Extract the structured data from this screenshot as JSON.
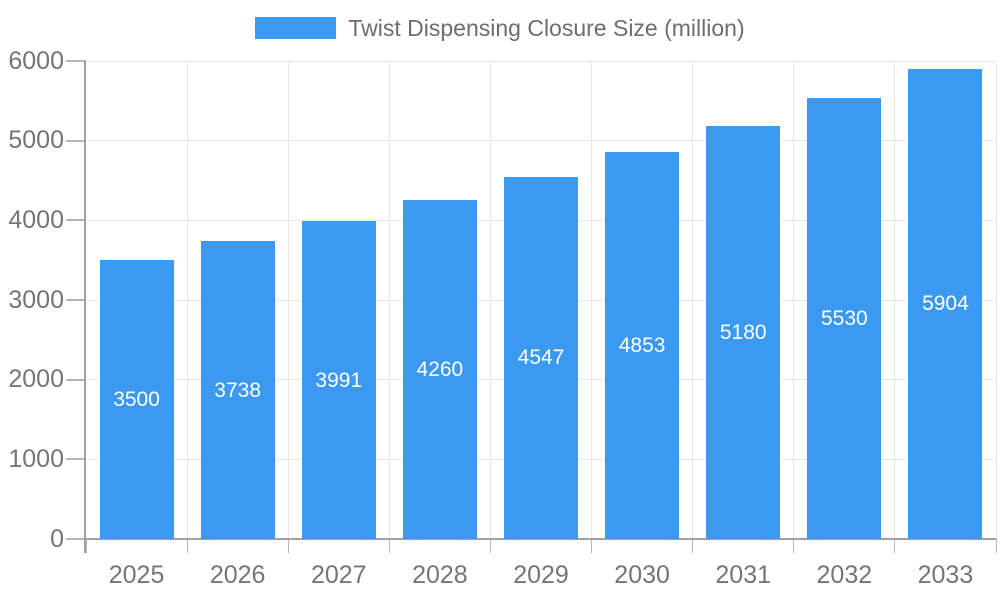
{
  "chart_data": {
    "type": "bar",
    "title": "Twist Dispensing Closure Size (million)",
    "categories": [
      "2025",
      "2026",
      "2027",
      "2028",
      "2029",
      "2030",
      "2031",
      "2032",
      "2033"
    ],
    "values": [
      3500,
      3738,
      3991,
      4260,
      4547,
      4853,
      5180,
      5530,
      5904
    ],
    "xlabel": "",
    "ylabel": "",
    "ylim": [
      0,
      6000
    ],
    "ytick_step": 1000,
    "ytick_labels": [
      "0",
      "1000",
      "2000",
      "3000",
      "4000",
      "5000",
      "6000"
    ],
    "grid": true,
    "legend_position": "top",
    "colors": {
      "bar": "#3b99f1",
      "bar_label": "#ffffff",
      "axis_text": "#757575",
      "legend_text": "#6d6d6d",
      "gridline": "#e7e7e7",
      "axis_line": "#a0a0a0",
      "tick": "#b5b5b5"
    }
  }
}
